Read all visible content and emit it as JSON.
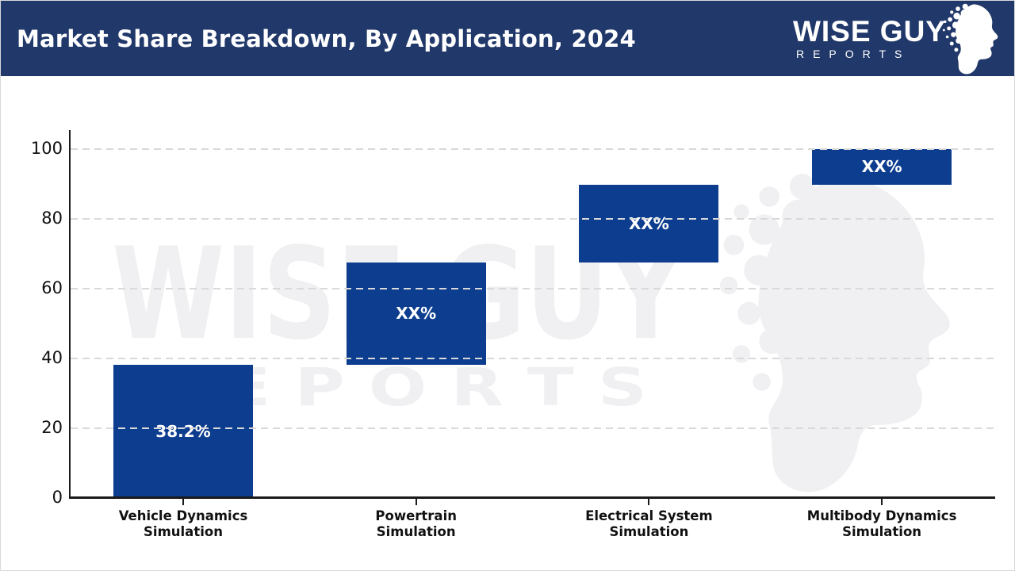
{
  "header": {
    "title": "Market Share Breakdown, By Application, 2024",
    "logo": {
      "name": "WISE GUY",
      "sub": "REPORTS"
    }
  },
  "watermark": {
    "line1": "WISE GUY",
    "line2": "R E P O R T S"
  },
  "chart_data": {
    "type": "bar",
    "subtype": "waterfall (floating stacked segments, one per category)",
    "title": "Market Share Breakdown, By Application, 2024",
    "categories": [
      "Vehicle Dynamics\nSimulation",
      "Powertrain\nSimulation",
      "Electrical System\nSimulation",
      "Multibody Dynamics\nSimulation"
    ],
    "segments": [
      {
        "category": "Vehicle Dynamics Simulation",
        "start": 0,
        "end": 38.2,
        "value": 38.2,
        "label": "38.2%"
      },
      {
        "category": "Powertrain Simulation",
        "start": 38.2,
        "end": 67.5,
        "value": 29.3,
        "label": "XX%"
      },
      {
        "category": "Electrical System Simulation",
        "start": 67.5,
        "end": 89.8,
        "value": 22.3,
        "label": "XX%"
      },
      {
        "category": "Multibody Dynamics Simulation",
        "start": 89.8,
        "end": 100,
        "value": 10.2,
        "label": "XX%"
      }
    ],
    "ylim": [
      0,
      100
    ],
    "yticks": [
      0,
      20,
      40,
      60,
      80,
      100
    ],
    "grid": "horizontal dashed lines drawn above bars",
    "legend": "none",
    "bar_color": "#0d3d8f",
    "bar_label_color": "#ffffff"
  },
  "colors": {
    "header_bg": "#21386a",
    "bar": "#0d3d8f",
    "grid": "#d9d9d9",
    "axis": "#1a1a1a",
    "watermark": "#f0f0f2",
    "page_border": "#d9d9dc"
  }
}
